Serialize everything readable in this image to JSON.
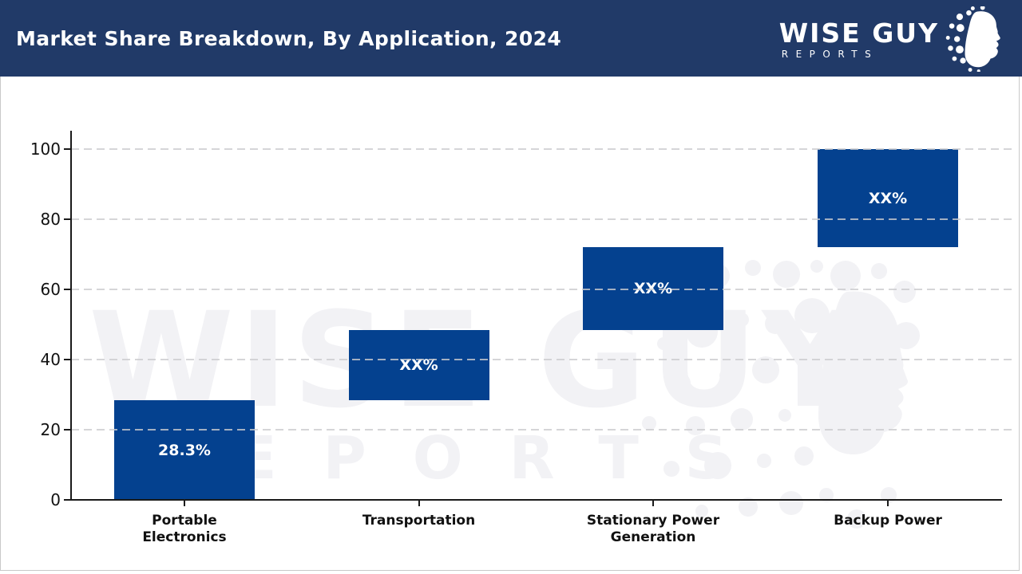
{
  "header": {
    "title": "Market Share Breakdown, By Application, 2024",
    "bg_color": "#213a68",
    "logo": {
      "line1": "WISE GUY",
      "line2": "REPORTS"
    }
  },
  "watermark": {
    "line1": "WISE GUY",
    "line2": "REPORTS"
  },
  "chart_data": {
    "type": "bar",
    "subtype": "waterfall",
    "title": "Market Share Breakdown, By Application, 2024",
    "categories": [
      "Portable Electronics",
      "Transportation",
      "Stationary Power Generation",
      "Backup Power"
    ],
    "category_label_lines": [
      [
        "Portable",
        "Electronics"
      ],
      [
        "Transportation"
      ],
      [
        "Stationary Power",
        "Generation"
      ],
      [
        "Backup Power"
      ]
    ],
    "segments": [
      {
        "start": 0,
        "end": 28.3,
        "delta": 28.3,
        "label": "28.3%"
      },
      {
        "start": 28.3,
        "end": 48.5,
        "delta": 20.2,
        "label": "XX%"
      },
      {
        "start": 48.5,
        "end": 72.0,
        "delta": 23.5,
        "label": "XX%"
      },
      {
        "start": 72.0,
        "end": 100,
        "delta": 28.0,
        "label": "XX%"
      }
    ],
    "xlabel": "",
    "ylabel": "",
    "ylim": [
      0,
      100
    ],
    "yticks": [
      0,
      20,
      40,
      60,
      80,
      100
    ],
    "grid": true,
    "grid_style": "dashed",
    "legend": "none",
    "bar_color": "#04418f",
    "bar_label_color": "#ffffff",
    "axis_color": "#1a1a1a"
  }
}
